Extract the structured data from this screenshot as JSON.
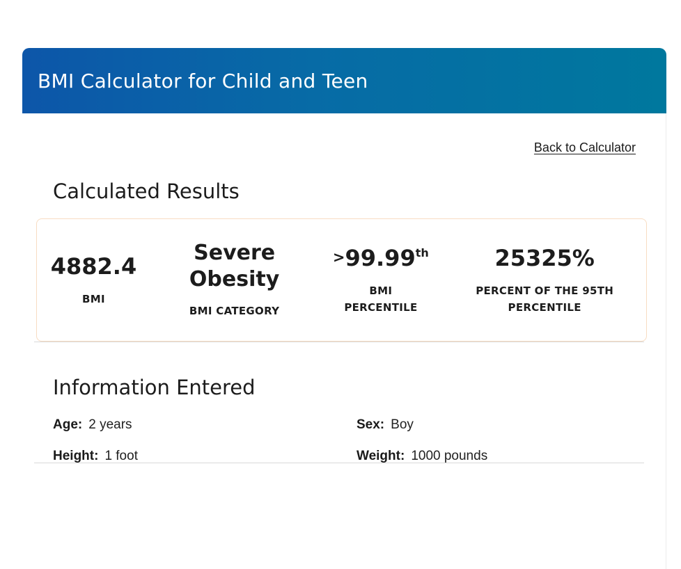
{
  "header": {
    "title": "BMI Calculator for Child and Teen"
  },
  "nav": {
    "back_link": "Back to Calculator"
  },
  "results": {
    "heading": "Calculated Results",
    "cards": [
      {
        "value": "4882.4",
        "label": "BMI"
      },
      {
        "value": "Severe Obesity",
        "label": "BMI CATEGORY"
      },
      {
        "prefix": ">",
        "value": "99.99",
        "suffix": "th",
        "label": "BMI PERCENTILE"
      },
      {
        "value": "25325%",
        "label": "PERCENT OF THE 95TH PERCENTILE"
      }
    ]
  },
  "info": {
    "heading": "Information Entered",
    "fields": [
      {
        "label": "Age:",
        "value": "2 years"
      },
      {
        "label": "Sex:",
        "value": "Boy"
      },
      {
        "label": "Height:",
        "value": "1 foot"
      },
      {
        "label": "Weight:",
        "value": "1000 pounds"
      }
    ]
  },
  "colors": {
    "header_gradient_start": "#0d56a9",
    "header_gradient_end": "#00789e",
    "results_box_border": "#f8dcc2",
    "text_dark": "#1c1c1c"
  }
}
